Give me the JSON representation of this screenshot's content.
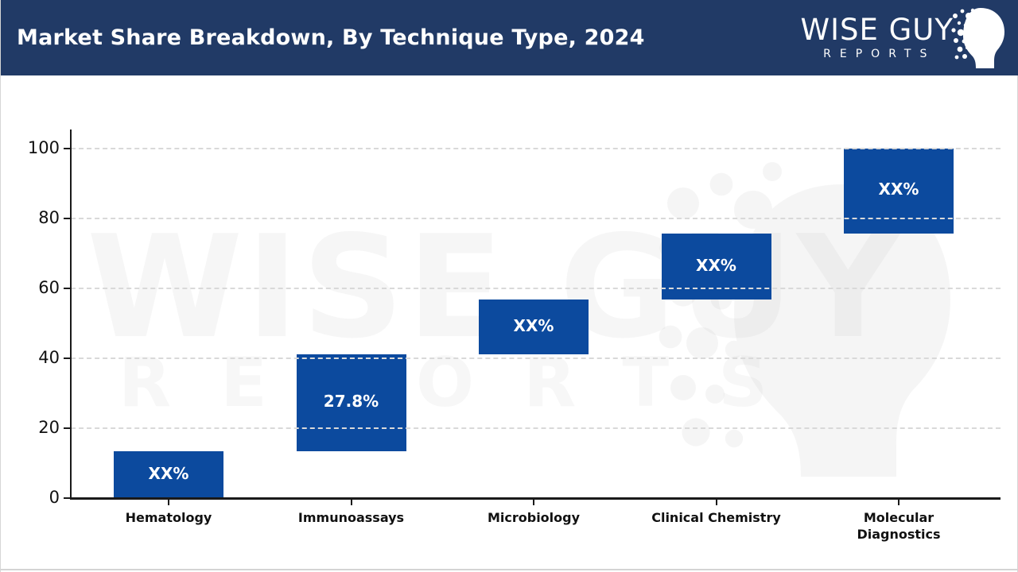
{
  "header": {
    "title": "Market Share Breakdown, By Technique Type, 2024",
    "logo": {
      "name": "WISE GUY",
      "subtitle": "REPORTS"
    }
  },
  "watermark": {
    "line1": "WISE GUY",
    "line2": "REPORTS"
  },
  "colors": {
    "header_bg": "#213a66",
    "bar_blue": "#0c4a9e",
    "axis": "#1a1a1a",
    "grid": "#d9d9d9",
    "bar_label_text": "#ffffff",
    "tick_text": "#111111"
  },
  "chart_data": {
    "type": "bar",
    "subtype": "waterfall",
    "title": "Market Share Breakdown, By Technique Type, 2024",
    "xlabel": "",
    "ylabel": "",
    "ylim": [
      0,
      100
    ],
    "yticks": [
      0,
      20,
      40,
      60,
      80,
      100
    ],
    "grid": "horizontal-dashed",
    "legend": "none",
    "categories": [
      "Hematology",
      "Immunoassays",
      "Microbiology",
      "Clinical Chemistry",
      "Molecular\nDiagnostics"
    ],
    "values": [
      13.3,
      27.8,
      15.7,
      18.9,
      24.3
    ],
    "segments": [
      {
        "category": "Hematology",
        "start": 0,
        "end": 13.3,
        "label": "XX%"
      },
      {
        "category": "Immunoassays",
        "start": 13.3,
        "end": 41.1,
        "label": "27.8%"
      },
      {
        "category": "Microbiology",
        "start": 41.1,
        "end": 56.8,
        "label": "XX%"
      },
      {
        "category": "Clinical Chemistry",
        "start": 56.8,
        "end": 75.7,
        "label": "XX%"
      },
      {
        "category": "Molecular\nDiagnostics",
        "start": 75.7,
        "end": 100,
        "label": "XX%"
      }
    ]
  }
}
